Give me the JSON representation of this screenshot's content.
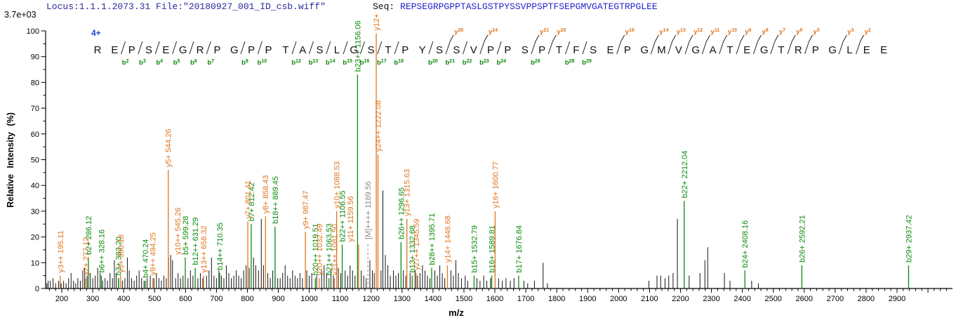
{
  "header": {
    "locus_file": "Locus:1.1.1.2073.31 File:\"20180927_001_ID_csb.wiff\"",
    "seq_label": "Seq: ",
    "sequence": "REPSEGRPGPPTASLGSTPYSSVPPSPTFSEPGMVGATEGTRPGLEE"
  },
  "colors": {
    "y_ion": "#e0761f",
    "b_ion": "#0c8a0c",
    "precursor": "#8a8a8a",
    "noise": "#141414",
    "header_blue": "#2b2b9b",
    "sequence_blue": "#2323cc",
    "charge_blue": "#2041cc",
    "axis": "#000000"
  },
  "chart_data": {
    "type": "bar",
    "subtype": "ms2-peptide-fragmentation-spectrum",
    "title": "",
    "xlabel": "m/z",
    "ylabel": "Relative Intensity (%)",
    "absolute_intensity_label": "3.7e+03",
    "precursor_charge": "4+",
    "xlim": [
      148,
      3078
    ],
    "ylim": [
      0,
      100
    ],
    "x_tick_labels": [
      200,
      300,
      400,
      500,
      600,
      700,
      800,
      900,
      1000,
      1100,
      1200,
      1300,
      1400,
      1500,
      1600,
      1700,
      1800,
      1900,
      2000,
      2100,
      2200,
      2300,
      2400,
      2500,
      2600,
      2700,
      2800,
      2900
    ],
    "x_minor_tick_step": 20,
    "y_ticks": [
      0,
      10,
      20,
      30,
      40,
      50,
      60,
      70,
      80,
      90,
      100
    ],
    "y_minor_tick_step": 5,
    "grid": false,
    "legend": false,
    "peptide": {
      "sequence": "REPSEGRPGPPTASLGSTPYSSVPPSPTFSEPGMVGATEGTRPGLEE",
      "b_ions": [
        2,
        3,
        4,
        5,
        6,
        7,
        9,
        10,
        12,
        13,
        14,
        15,
        16,
        17,
        18,
        20,
        21,
        22,
        23,
        24,
        26,
        28,
        29
      ],
      "y_ions": [
        26,
        24,
        21,
        20,
        16,
        14,
        13,
        12,
        11,
        10,
        9,
        8,
        7,
        6,
        5,
        3,
        2
      ]
    },
    "y_peaks": [
      {
        "label": "y3++ 195.11",
        "mz": 195.11,
        "i": 5
      },
      {
        "label": "y2+ 277.12",
        "mz": 277.12,
        "i": 4
      },
      {
        "label": "y3+ 390.18",
        "mz": 390.18,
        "i": 5
      },
      {
        "label": "y9++ 494.25",
        "mz": 494.25,
        "i": 4
      },
      {
        "label": "y5+ 544.26",
        "mz": 544.26,
        "i": 46
      },
      {
        "label": "y10++ 545.26",
        "mz": 545.26,
        "i": 12,
        "label_dx": 13
      },
      {
        "label": "y13++ 658.32",
        "mz": 658.32,
        "i": 5
      },
      {
        "label": "y7+ 801.41",
        "mz": 801.41,
        "i": 26
      },
      {
        "label": "y8+ 858.43",
        "mz": 858.43,
        "i": 28
      },
      {
        "label": "y9+ 987.47",
        "mz": 987.47,
        "i": 22
      },
      {
        "label": "y20++ 1032.49",
        "mz": 1032.49,
        "i": 4
      },
      {
        "label": "y21++ 1081.50",
        "mz": 1081.5,
        "i": 4
      },
      {
        "label": "y10+ 1088.53",
        "mz": 1088.53,
        "i": 30
      },
      {
        "label": "y11+ 1159.56",
        "mz": 1159.56,
        "i": 17,
        "label_dx": -12
      },
      {
        "label": "y12+",
        "mz": 1216.58,
        "i": 99
      },
      {
        "label": "y24++ 1222.08",
        "mz": 1222.08,
        "i": 52
      },
      {
        "label": "y13+ 1315.63",
        "mz": 1315.63,
        "i": 27
      },
      {
        "label": "y27++ 1345.59",
        "mz": 1345.59,
        "i": 6
      },
      {
        "label": "y14+ 1446.68",
        "mz": 1446.68,
        "i": 9
      },
      {
        "label": "y16+ 1600.77",
        "mz": 1600.77,
        "i": 30
      }
    ],
    "b_peaks": [
      {
        "label": "b2+ 286.12",
        "mz": 286.12,
        "i": 12
      },
      {
        "label": "b6++ 328.16",
        "mz": 328.16,
        "i": 5
      },
      {
        "label": "b3+ 383.20",
        "mz": 383.2,
        "i": 4
      },
      {
        "label": "b4+ 470.24",
        "mz": 470.24,
        "i": 3
      },
      {
        "label": "b5+ 599.28",
        "mz": 599.28,
        "i": 12
      },
      {
        "label": "b12++ 631.29",
        "mz": 631.29,
        "i": 8
      },
      {
        "label": "b14++ 710.35",
        "mz": 710.35,
        "i": 6
      },
      {
        "label": "b7+ 812.42",
        "mz": 812.42,
        "i": 25
      },
      {
        "label": "b18++ 889.45",
        "mz": 889.45,
        "i": 24
      },
      {
        "label": "b20++ 1019.51",
        "mz": 1019.51,
        "i": 4
      },
      {
        "label": "b21++ 1063.53",
        "mz": 1063.53,
        "i": 4
      },
      {
        "label": "b22++ 1106.55",
        "mz": 1106.55,
        "i": 17
      },
      {
        "label": "b23++ 1156.06",
        "mz": 1156.06,
        "i": 83
      },
      {
        "label": "b26++ 1296.65",
        "mz": 1296.65,
        "i": 18
      },
      {
        "label": "b13+ 1332.68",
        "mz": 1332.68,
        "i": 5
      },
      {
        "label": "b28++ 1395.71",
        "mz": 1395.71,
        "i": 8
      },
      {
        "label": "b15+ 1532.79",
        "mz": 1532.79,
        "i": 5
      },
      {
        "label": "b16+ 1589.81",
        "mz": 1589.81,
        "i": 5
      },
      {
        "label": "b17+ 1676.84",
        "mz": 1676.84,
        "i": 5
      },
      {
        "label": "b22+ 2212.04",
        "mz": 2212.04,
        "i": 34
      },
      {
        "label": "b24+ 2408.16",
        "mz": 2408.16,
        "i": 7
      },
      {
        "label": "b26+ 2592.21",
        "mz": 2592.21,
        "i": 9
      },
      {
        "label": "b29+ 2937.42",
        "mz": 2937.42,
        "i": 9
      }
    ],
    "precursor_peak": {
      "label": "[M]++++ 1189.56",
      "mz": 1189.56,
      "i": 18
    },
    "noise_peaks": [
      [
        152,
        2
      ],
      [
        156,
        3
      ],
      [
        163,
        3
      ],
      [
        172,
        4
      ],
      [
        180,
        2
      ],
      [
        190,
        3
      ],
      [
        198,
        2
      ],
      [
        206,
        3
      ],
      [
        214,
        2
      ],
      [
        222,
        4
      ],
      [
        230,
        6
      ],
      [
        238,
        3
      ],
      [
        245,
        2
      ],
      [
        252,
        4
      ],
      [
        260,
        3
      ],
      [
        268,
        7
      ],
      [
        274,
        8
      ],
      [
        282,
        5
      ],
      [
        292,
        6
      ],
      [
        300,
        4
      ],
      [
        308,
        5
      ],
      [
        316,
        8
      ],
      [
        324,
        6
      ],
      [
        332,
        3
      ],
      [
        340,
        4
      ],
      [
        348,
        3
      ],
      [
        356,
        6
      ],
      [
        364,
        4
      ],
      [
        370,
        11
      ],
      [
        376,
        6
      ],
      [
        384,
        4
      ],
      [
        396,
        3
      ],
      [
        404,
        4
      ],
      [
        412,
        12
      ],
      [
        418,
        7
      ],
      [
        426,
        4
      ],
      [
        434,
        3
      ],
      [
        442,
        5
      ],
      [
        450,
        7
      ],
      [
        458,
        4
      ],
      [
        466,
        3
      ],
      [
        476,
        4
      ],
      [
        486,
        5
      ],
      [
        498,
        4
      ],
      [
        506,
        6
      ],
      [
        514,
        4
      ],
      [
        522,
        3
      ],
      [
        530,
        5
      ],
      [
        538,
        4
      ],
      [
        552,
        13
      ],
      [
        558,
        11
      ],
      [
        568,
        4
      ],
      [
        576,
        6
      ],
      [
        584,
        4
      ],
      [
        592,
        5
      ],
      [
        608,
        4
      ],
      [
        616,
        7
      ],
      [
        624,
        5
      ],
      [
        640,
        4
      ],
      [
        648,
        6
      ],
      [
        656,
        4
      ],
      [
        668,
        5
      ],
      [
        676,
        7
      ],
      [
        684,
        12
      ],
      [
        692,
        5
      ],
      [
        700,
        4
      ],
      [
        708,
        7
      ],
      [
        716,
        5
      ],
      [
        724,
        4
      ],
      [
        732,
        9
      ],
      [
        740,
        6
      ],
      [
        748,
        4
      ],
      [
        756,
        5
      ],
      [
        764,
        7
      ],
      [
        772,
        5
      ],
      [
        780,
        4
      ],
      [
        788,
        7
      ],
      [
        796,
        9
      ],
      [
        806,
        8
      ],
      [
        820,
        12
      ],
      [
        827,
        9
      ],
      [
        836,
        7
      ],
      [
        845,
        27
      ],
      [
        852,
        9
      ],
      [
        866,
        6
      ],
      [
        874,
        4
      ],
      [
        882,
        7
      ],
      [
        890,
        5
      ],
      [
        898,
        4
      ],
      [
        906,
        4
      ],
      [
        914,
        6
      ],
      [
        922,
        9
      ],
      [
        930,
        5
      ],
      [
        938,
        4
      ],
      [
        946,
        7
      ],
      [
        954,
        5
      ],
      [
        962,
        4
      ],
      [
        970,
        6
      ],
      [
        978,
        4
      ],
      [
        992,
        7
      ],
      [
        1000,
        5
      ],
      [
        1008,
        6
      ],
      [
        1024,
        5
      ],
      [
        1040,
        7
      ],
      [
        1048,
        9
      ],
      [
        1056,
        6
      ],
      [
        1070,
        7
      ],
      [
        1078,
        5
      ],
      [
        1094,
        8
      ],
      [
        1102,
        6
      ],
      [
        1116,
        7
      ],
      [
        1124,
        5
      ],
      [
        1132,
        9
      ],
      [
        1140,
        7
      ],
      [
        1148,
        5
      ],
      [
        1168,
        7
      ],
      [
        1176,
        5
      ],
      [
        1184,
        4
      ],
      [
        1196,
        11
      ],
      [
        1204,
        7
      ],
      [
        1210,
        6
      ],
      [
        1232,
        7
      ],
      [
        1238,
        38
      ],
      [
        1246,
        13
      ],
      [
        1254,
        9
      ],
      [
        1262,
        5
      ],
      [
        1272,
        7
      ],
      [
        1280,
        5
      ],
      [
        1288,
        6
      ],
      [
        1304,
        7
      ],
      [
        1312,
        5
      ],
      [
        1326,
        6
      ],
      [
        1342,
        7
      ],
      [
        1350,
        5
      ],
      [
        1358,
        6
      ],
      [
        1366,
        9
      ],
      [
        1374,
        7
      ],
      [
        1382,
        5
      ],
      [
        1390,
        4
      ],
      [
        1406,
        7
      ],
      [
        1414,
        5
      ],
      [
        1422,
        9
      ],
      [
        1430,
        6
      ],
      [
        1438,
        4
      ],
      [
        1458,
        7
      ],
      [
        1466,
        5
      ],
      [
        1474,
        11
      ],
      [
        1482,
        6
      ],
      [
        1492,
        4
      ],
      [
        1504,
        5
      ],
      [
        1512,
        3
      ],
      [
        1542,
        4
      ],
      [
        1552,
        3
      ],
      [
        1564,
        5
      ],
      [
        1574,
        3
      ],
      [
        1586,
        4
      ],
      [
        1612,
        4
      ],
      [
        1624,
        3
      ],
      [
        1636,
        4
      ],
      [
        1650,
        3
      ],
      [
        1662,
        4
      ],
      [
        1694,
        3
      ],
      [
        1706,
        2
      ],
      [
        1728,
        3
      ],
      [
        1756,
        10
      ],
      [
        1770,
        2
      ],
      [
        2098,
        3
      ],
      [
        2124,
        5
      ],
      [
        2136,
        5
      ],
      [
        2150,
        4
      ],
      [
        2162,
        5
      ],
      [
        2176,
        6
      ],
      [
        2190,
        27
      ],
      [
        2228,
        5
      ],
      [
        2263,
        6
      ],
      [
        2279,
        11
      ],
      [
        2288,
        16
      ],
      [
        2342,
        6
      ],
      [
        2360,
        3
      ],
      [
        2430,
        3
      ],
      [
        2452,
        2
      ]
    ]
  }
}
